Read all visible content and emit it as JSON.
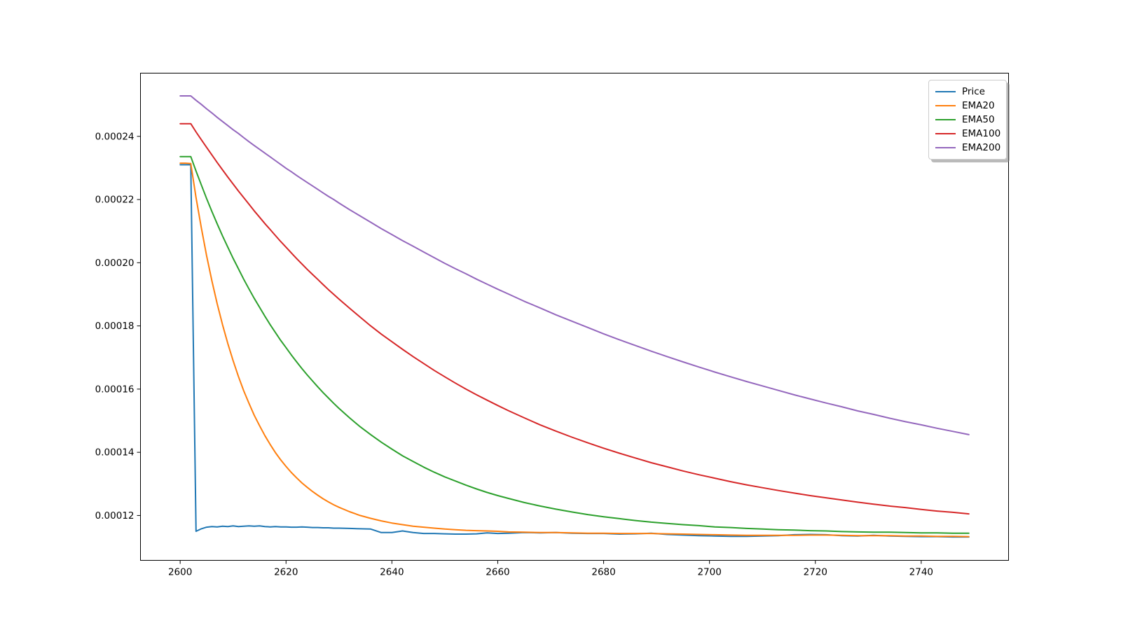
{
  "figure": {
    "background": "#ffffff",
    "axes_frame_color": "#000000",
    "tick_label_color": "#000000"
  },
  "legend": {
    "position": "upper right",
    "entries": [
      "Price",
      "EMA20",
      "EMA50",
      "EMA100",
      "EMA200"
    ]
  },
  "chart_data": {
    "type": "line",
    "title": "",
    "xlabel": "",
    "ylabel": "",
    "grid": false,
    "legend_position": "upper right",
    "xlim": [
      2592.5,
      2756.5
    ],
    "ylim": [
      0.0001058,
      0.00026
    ],
    "x_ticks": [
      2600,
      2620,
      2640,
      2660,
      2680,
      2700,
      2720,
      2740
    ],
    "x_tick_labels": [
      "2600",
      "2620",
      "2640",
      "2660",
      "2680",
      "2700",
      "2720",
      "2740"
    ],
    "y_ticks": [
      0.00012,
      0.00014,
      0.00016,
      0.00018,
      0.0002,
      0.00022,
      0.00024
    ],
    "y_tick_labels": [
      "0.00012",
      "0.00014",
      "0.00016",
      "0.00018",
      "0.00020",
      "0.00022",
      "0.00024"
    ],
    "x": [
      2600,
      2601,
      2602,
      2603,
      2604,
      2605,
      2606,
      2607,
      2608,
      2609,
      2610,
      2611,
      2612,
      2613,
      2614,
      2615,
      2616,
      2617,
      2618,
      2619,
      2620,
      2621,
      2622,
      2623,
      2624,
      2625,
      2626,
      2627,
      2628,
      2629,
      2630,
      2632,
      2634,
      2636,
      2638,
      2640,
      2642,
      2644,
      2646,
      2648,
      2650,
      2652,
      2654,
      2656,
      2658,
      2660,
      2662,
      2665,
      2668,
      2671,
      2674,
      2677,
      2680,
      2683,
      2686,
      2689,
      2692,
      2695,
      2698,
      2701,
      2704,
      2707,
      2710,
      2713,
      2716,
      2719,
      2722,
      2725,
      2728,
      2731,
      2734,
      2737,
      2740,
      2743,
      2746,
      2749
    ],
    "series": [
      {
        "name": "Price",
        "color": "#1f77b4",
        "values": [
          0.000231,
          0.000231,
          0.000231,
          0.000115,
          0.0001158,
          0.0001163,
          0.0001165,
          0.0001164,
          0.0001166,
          0.0001165,
          0.0001167,
          0.0001165,
          0.0001166,
          0.0001167,
          0.0001166,
          0.0001167,
          0.0001165,
          0.0001164,
          0.0001165,
          0.0001164,
          0.0001164,
          0.0001163,
          0.0001163,
          0.0001164,
          0.0001163,
          0.0001162,
          0.0001162,
          0.0001161,
          0.0001161,
          0.000116,
          0.000116,
          0.0001159,
          0.0001158,
          0.0001157,
          0.0001146,
          0.0001146,
          0.0001151,
          0.0001146,
          0.0001143,
          0.0001143,
          0.0001142,
          0.0001141,
          0.0001141,
          0.0001142,
          0.0001145,
          0.0001143,
          0.0001144,
          0.0001146,
          0.0001145,
          0.0001146,
          0.0001144,
          0.0001143,
          0.0001143,
          0.0001141,
          0.0001142,
          0.0001144,
          0.000114,
          0.0001138,
          0.0001136,
          0.0001135,
          0.0001134,
          0.0001134,
          0.0001135,
          0.0001136,
          0.0001139,
          0.000114,
          0.0001139,
          0.0001136,
          0.0001135,
          0.0001137,
          0.0001135,
          0.0001134,
          0.0001133,
          0.0001133,
          0.0001132,
          0.0001132
        ]
      },
      {
        "name": "EMA20",
        "color": "#ff7f0e",
        "values": [
          0.0002315,
          0.0002315,
          0.0002314,
          0.0002206,
          0.000211,
          0.0002022,
          0.0001942,
          0.000187,
          0.0001804,
          0.0001744,
          0.000169,
          0.000164,
          0.0001595,
          0.0001555,
          0.0001517,
          0.0001484,
          0.0001453,
          0.0001425,
          0.0001399,
          0.0001376,
          0.0001355,
          0.0001336,
          0.0001319,
          0.0001303,
          0.0001289,
          0.0001276,
          0.0001264,
          0.0001253,
          0.0001243,
          0.0001234,
          0.0001226,
          0.0001212,
          0.00012,
          0.0001191,
          0.0001183,
          0.0001176,
          0.0001171,
          0.0001166,
          0.0001163,
          0.000116,
          0.0001157,
          0.0001155,
          0.0001153,
          0.0001152,
          0.0001151,
          0.000115,
          0.0001148,
          0.0001147,
          0.0001146,
          0.0001146,
          0.0001145,
          0.0001144,
          0.0001144,
          0.0001143,
          0.0001143,
          0.0001143,
          0.0001142,
          0.0001141,
          0.000114,
          0.0001139,
          0.0001138,
          0.0001137,
          0.0001137,
          0.0001137,
          0.0001137,
          0.0001138,
          0.0001138,
          0.0001137,
          0.0001136,
          0.0001136,
          0.0001136,
          0.0001135,
          0.0001135,
          0.0001134,
          0.0001134,
          0.0001133
        ]
      },
      {
        "name": "EMA50",
        "color": "#2ca02c",
        "values": [
          0.0002336,
          0.0002336,
          0.0002336,
          0.000229,
          0.0002246,
          0.0002203,
          0.0002162,
          0.0002123,
          0.0002085,
          0.0002049,
          0.0002014,
          0.0001981,
          0.0001948,
          0.0001917,
          0.0001887,
          0.0001859,
          0.0001831,
          0.0001804,
          0.0001779,
          0.0001754,
          0.0001731,
          0.0001708,
          0.0001686,
          0.0001665,
          0.0001645,
          0.0001626,
          0.0001607,
          0.0001589,
          0.0001572,
          0.0001555,
          0.0001539,
          0.0001509,
          0.0001481,
          0.0001456,
          0.0001432,
          0.000141,
          0.0001389,
          0.0001371,
          0.0001353,
          0.0001337,
          0.0001322,
          0.0001309,
          0.0001296,
          0.0001284,
          0.0001273,
          0.0001263,
          0.0001254,
          0.0001241,
          0.000123,
          0.000122,
          0.0001211,
          0.0001203,
          0.0001196,
          0.000119,
          0.0001184,
          0.0001179,
          0.0001175,
          0.0001171,
          0.0001168,
          0.0001164,
          0.0001162,
          0.0001159,
          0.0001157,
          0.0001155,
          0.0001154,
          0.0001152,
          0.0001151,
          0.0001149,
          0.0001148,
          0.0001147,
          0.0001147,
          0.0001146,
          0.0001145,
          0.0001145,
          0.0001144,
          0.0001144
        ]
      },
      {
        "name": "EMA100",
        "color": "#d62728",
        "values": [
          0.000244,
          0.000244,
          0.000244,
          0.0002414,
          0.0002389,
          0.0002365,
          0.0002341,
          0.0002317,
          0.0002294,
          0.0002271,
          0.0002249,
          0.0002227,
          0.0002206,
          0.0002185,
          0.0002164,
          0.0002144,
          0.0002124,
          0.0002105,
          0.0002086,
          0.0002067,
          0.0002049,
          0.0002031,
          0.0002013,
          0.0001996,
          0.0001979,
          0.0001963,
          0.0001947,
          0.0001931,
          0.0001915,
          0.00019,
          0.0001885,
          0.0001856,
          0.0001828,
          0.00018,
          0.0001774,
          0.000175,
          0.0001726,
          0.0001703,
          0.0001681,
          0.0001659,
          0.0001639,
          0.0001619,
          0.00016,
          0.0001582,
          0.0001565,
          0.0001548,
          0.0001532,
          0.0001509,
          0.0001487,
          0.0001467,
          0.0001448,
          0.000143,
          0.0001413,
          0.0001397,
          0.0001382,
          0.0001367,
          0.0001354,
          0.0001341,
          0.0001329,
          0.0001318,
          0.0001307,
          0.0001297,
          0.0001288,
          0.0001279,
          0.0001271,
          0.0001263,
          0.0001256,
          0.0001249,
          0.0001242,
          0.0001236,
          0.000123,
          0.0001225,
          0.0001219,
          0.0001214,
          0.000121,
          0.0001205
        ]
      },
      {
        "name": "EMA200",
        "color": "#9467bd",
        "values": [
          0.0002528,
          0.0002528,
          0.0002528,
          0.0002514,
          0.0002501,
          0.0002487,
          0.0002474,
          0.000246,
          0.0002447,
          0.0002434,
          0.0002421,
          0.0002409,
          0.0002396,
          0.0002383,
          0.0002371,
          0.0002359,
          0.0002347,
          0.0002335,
          0.0002323,
          0.0002311,
          0.0002299,
          0.0002288,
          0.0002276,
          0.0002265,
          0.0002254,
          0.0002243,
          0.0002232,
          0.0002221,
          0.000221,
          0.00022,
          0.0002189,
          0.0002168,
          0.0002148,
          0.0002128,
          0.0002108,
          0.0002089,
          0.000207,
          0.0002052,
          0.0002034,
          0.0002016,
          0.0001998,
          0.0001981,
          0.0001965,
          0.0001948,
          0.0001932,
          0.0001916,
          0.0001901,
          0.0001878,
          0.0001857,
          0.0001835,
          0.0001815,
          0.0001795,
          0.0001775,
          0.0001756,
          0.0001738,
          0.000172,
          0.0001703,
          0.0001686,
          0.000167,
          0.0001654,
          0.0001639,
          0.0001624,
          0.000161,
          0.0001596,
          0.0001582,
          0.0001569,
          0.0001556,
          0.0001544,
          0.0001531,
          0.000152,
          0.0001508,
          0.0001497,
          0.0001487,
          0.0001476,
          0.0001466,
          0.0001456
        ]
      }
    ]
  }
}
